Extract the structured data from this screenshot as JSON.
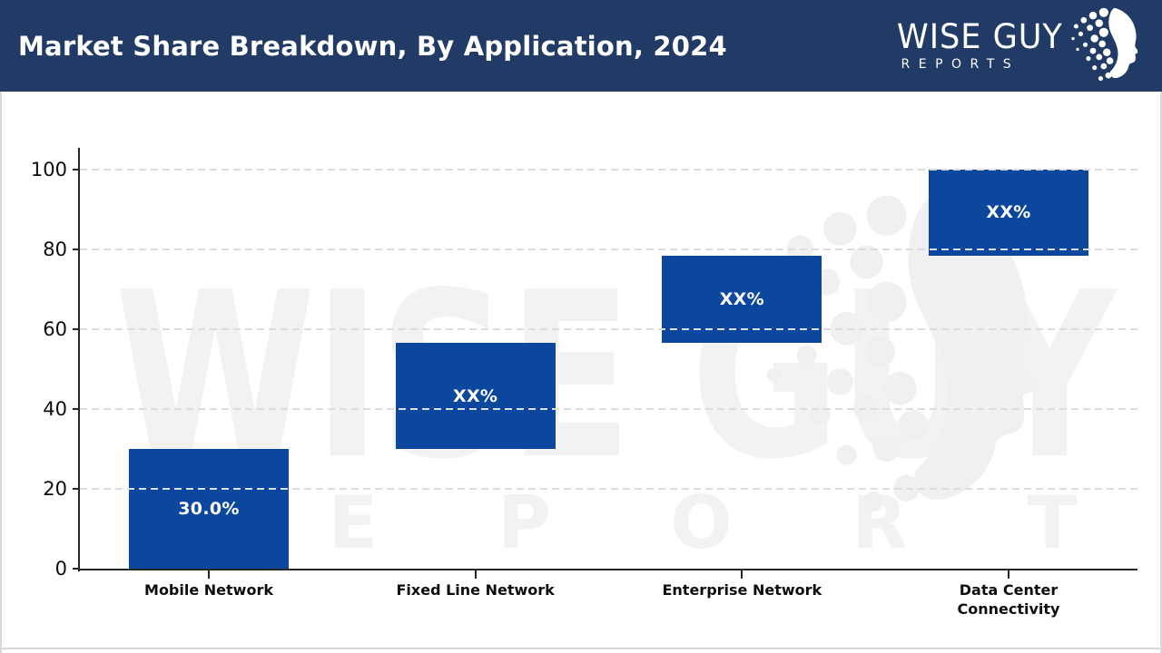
{
  "header": {
    "title": "Market Share Breakdown, By Application, 2024",
    "logo": {
      "brand_top": "WISE GUY",
      "brand_bottom": "REPORTS",
      "head_icon": "dotted-face-profile"
    }
  },
  "watermark": {
    "brand_top": "WISE GUY",
    "brand_bottom": "R E P O R T S"
  },
  "chart_data": {
    "type": "bar",
    "variant": "waterfall",
    "title": "Market Share Breakdown, By Application, 2024",
    "categories": [
      "Mobile Network",
      "Fixed Line Network",
      "Enterprise Network",
      "Data Center Connectivity"
    ],
    "segments": [
      {
        "category": "Mobile Network",
        "start": 0,
        "end": 30,
        "label": "30.0%"
      },
      {
        "category": "Fixed Line Network",
        "start": 30,
        "end": 56.5,
        "label": "XX%"
      },
      {
        "category": "Enterprise Network",
        "start": 56.5,
        "end": 78.5,
        "label": "XX%"
      },
      {
        "category": "Data Center Connectivity",
        "start": 78.5,
        "end": 100,
        "label": "XX%"
      }
    ],
    "ylim": [
      0,
      100
    ],
    "yticks": [
      0,
      20,
      40,
      60,
      80,
      100
    ],
    "grid": "horizontal dashed",
    "legend": "none",
    "bar_color": "#0b479c",
    "bar_label_color": "#ffffff"
  },
  "colors": {
    "header_bg": "#213a66",
    "bar": "#0b479c",
    "grid": "#dcdcdc",
    "axis": "#262626",
    "watermark": "#f2f2f2",
    "border": "#d9d9d9",
    "page_bg": "#ffffff"
  }
}
